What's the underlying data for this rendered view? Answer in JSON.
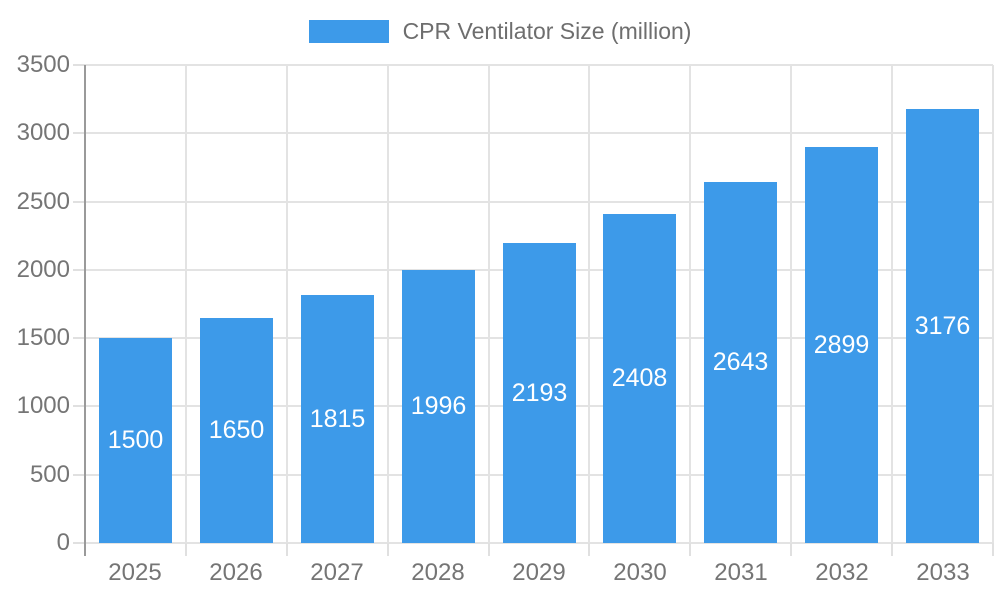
{
  "chart_data": {
    "type": "bar",
    "title": "CPR Ventilator Size (million)",
    "categories": [
      "2025",
      "2026",
      "2027",
      "2028",
      "2029",
      "2030",
      "2031",
      "2032",
      "2033"
    ],
    "series": [
      {
        "name": "CPR Ventilator Size (million)",
        "values": [
          1500,
          1650,
          1815,
          1996,
          2193,
          2408,
          2643,
          2899,
          3176
        ]
      }
    ],
    "value_labels_shown": true,
    "value_label_position": "inside-center",
    "xlabel": "",
    "ylabel": "",
    "ylim": [
      0,
      3500
    ],
    "y_ticks": [
      0,
      500,
      1000,
      1500,
      2000,
      2500,
      3000,
      3500
    ],
    "grid": true,
    "legend_position": "top-center"
  },
  "colors": {
    "bar": "#3d9ae9",
    "gridline": "#e3e3e3",
    "tick": "#e0e0e0",
    "axis_line": "#9a9a9a",
    "axis_text": "#757575",
    "legend_text": "#6e6e6e",
    "value_label_text": "#ffffff",
    "background": "#ffffff"
  }
}
